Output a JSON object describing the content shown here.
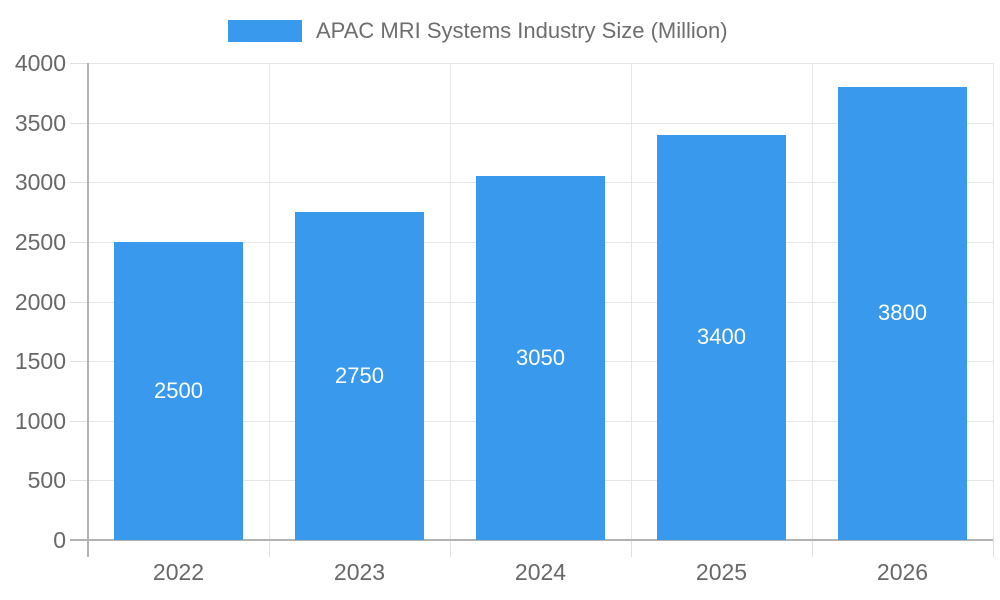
{
  "legend": {
    "label": "APAC MRI Systems Industry Size (Million)"
  },
  "chart_data": {
    "type": "bar",
    "title": "",
    "categories": [
      "2022",
      "2023",
      "2024",
      "2025",
      "2026"
    ],
    "series": [
      {
        "name": "APAC MRI Systems Industry Size (Million)",
        "values": [
          2500,
          2750,
          3050,
          3400,
          3800
        ]
      }
    ],
    "value_labels": [
      "2500",
      "2750",
      "3050",
      "3400",
      "3800"
    ],
    "xlabel": "",
    "ylabel": "",
    "ylim": [
      0,
      4000
    ],
    "ytick_step": 500,
    "ytick_labels": [
      "0",
      "500",
      "1000",
      "1500",
      "2000",
      "2500",
      "3000",
      "3500",
      "4000"
    ],
    "grid": true,
    "legend_position": "top"
  },
  "colors": {
    "bar": "#3999ec",
    "value_label_text": "#ffffff",
    "tick_label_text": "#686868",
    "legend_text": "#6e6e6e",
    "gridline": "#e6e6e6",
    "axis_line": "#b3b3b3",
    "background": "#ffffff"
  }
}
